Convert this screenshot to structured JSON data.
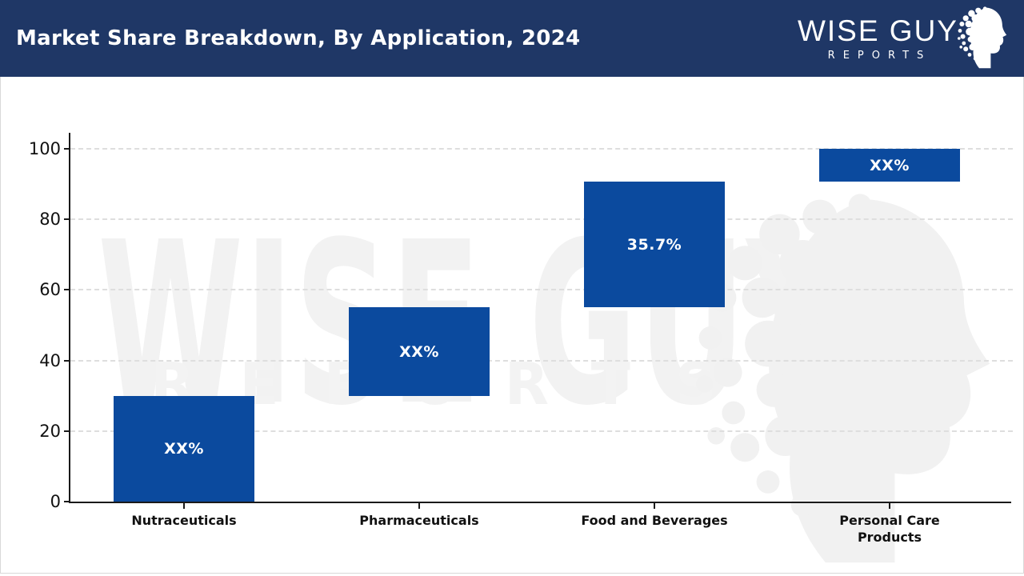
{
  "header": {
    "title": "Market Share Breakdown, By Application, 2024",
    "bg_color": "#1f3766",
    "logo": {
      "line1": "WISE GUY",
      "line2": "REPORTS"
    }
  },
  "watermark": {
    "line1": "WISE GUY",
    "line2": "REPORTS"
  },
  "chart_data": {
    "type": "bar",
    "variant": "waterfall-floating-bars",
    "title": "Market Share Breakdown, By Application, 2024",
    "categories": [
      "Nutraceuticals",
      "Pharmaceuticals",
      "Food and Beverages",
      "Personal Care Products"
    ],
    "segments": [
      {
        "category": "Nutraceuticals",
        "start": 0,
        "end": 30,
        "value": 30,
        "label": "XX%"
      },
      {
        "category": "Pharmaceuticals",
        "start": 30,
        "end": 55,
        "value": 25,
        "label": "XX%"
      },
      {
        "category": "Food and Beverages",
        "start": 55,
        "end": 90.7,
        "value": 35.7,
        "label": "35.7%"
      },
      {
        "category": "Personal Care Products",
        "start": 90.7,
        "end": 100,
        "value": 9.3,
        "label": "XX%"
      }
    ],
    "xlabel": "",
    "ylabel": "",
    "ylim": [
      0,
      100
    ],
    "yticks": [
      0,
      20,
      40,
      60,
      80,
      100
    ],
    "grid": "horizontal-dashed",
    "legend": "none",
    "bar_color": "#0b4a9e",
    "bar_label_color": "#ffffff"
  }
}
